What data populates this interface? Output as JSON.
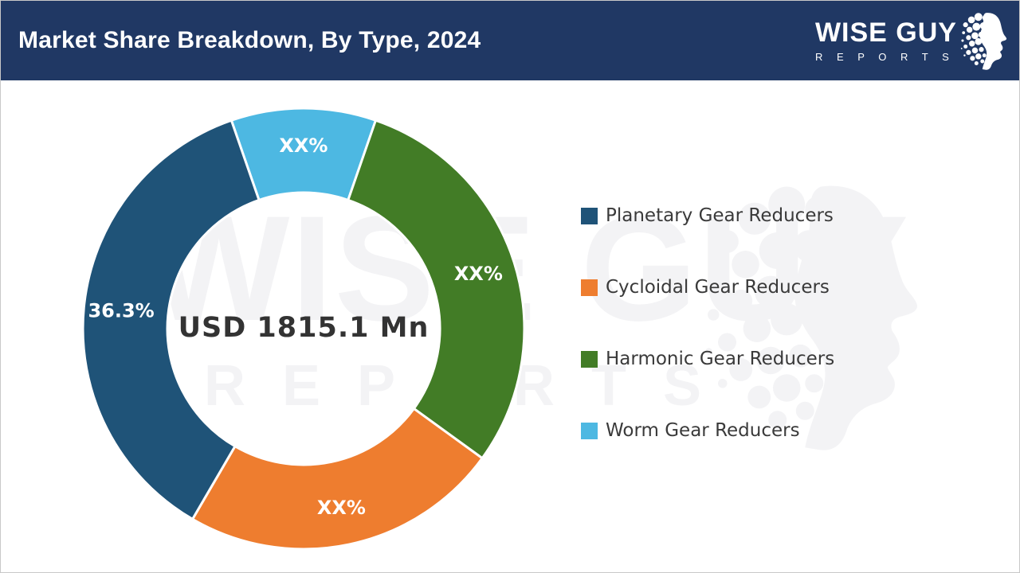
{
  "header": {
    "title": "Market Share Breakdown, By Type, 2024",
    "logo": {
      "name": "WISE GUY",
      "subtitle": "R E P O R T S"
    }
  },
  "watermark": {
    "line1": "WISE GUY",
    "line2": "REPORTS"
  },
  "chart_data": {
    "type": "pie",
    "subtype": "donut",
    "title": "Market Share Breakdown, By Type, 2024",
    "center_label": "USD 1815.1 Mn",
    "units": "percent share",
    "segments": [
      {
        "label": "Planetary Gear Reducers",
        "value": 36.3,
        "display_label": "36.3%",
        "color": "#1f5378"
      },
      {
        "label": "Cycloidal Gear Reducers",
        "value": 23.4,
        "display_label": "XX%",
        "color": "#ee7d2f"
      },
      {
        "label": "Harmonic Gear Reducers",
        "value": 29.7,
        "display_label": "XX%",
        "color": "#427c26"
      },
      {
        "label": "Worm Gear Reducers",
        "value": 10.6,
        "display_label": "XX%",
        "color": "#4db8e2"
      }
    ],
    "draw_order": [
      3,
      2,
      1,
      0
    ],
    "start_angle_deg": 109.1,
    "clockwise": true,
    "inner_radius_ratio": 0.617,
    "slice_label_color": "#ffffff",
    "legend_position": "right",
    "notes": "Only Planetary share is shown numerically; other slices are masked as XX%"
  },
  "colors": {
    "header_bg": "#203864",
    "body_bg": "#ffffff",
    "watermark": "#f3f3f5",
    "center_text": "#333333",
    "legend_text": "#3a3a3a"
  }
}
